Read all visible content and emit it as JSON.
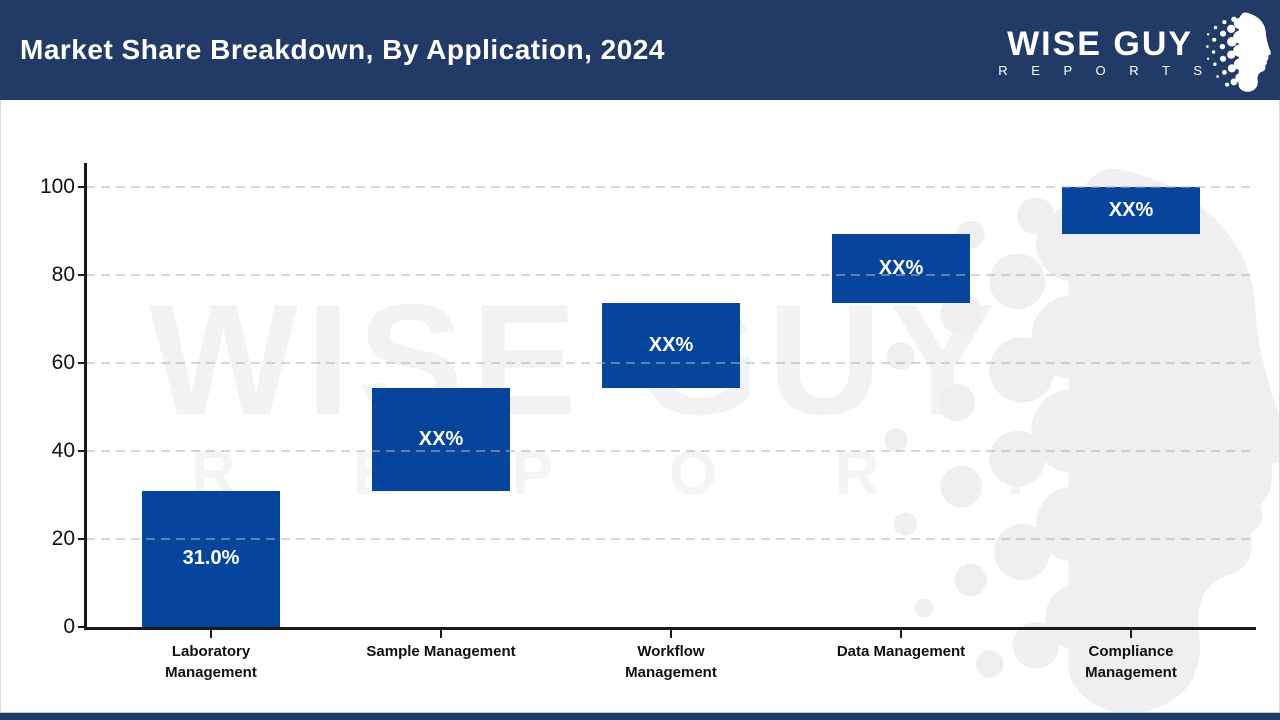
{
  "header": {
    "title": "Market Share Breakdown, By Application, 2024",
    "brand_line1": "WISE GUY",
    "brand_line2": "R E P O R T S"
  },
  "watermark": {
    "line1": "WISE GUY",
    "line2": "R E P O R T S",
    "head_icon": "dotted-head-profile"
  },
  "colors": {
    "header_navy": "#223A66",
    "bar_blue": "#07459C",
    "watermark_gray": "#f2f2f4",
    "grid_gray": "#dadade",
    "axis_black": "#1a1a1a"
  },
  "chart_data": {
    "type": "bar",
    "subtype": "waterfall-stacked-breakdown",
    "title": "Market Share Breakdown, By Application, 2024",
    "xlabel": "",
    "ylabel": "",
    "ylim": [
      0,
      105
    ],
    "yticks": [
      0,
      20,
      40,
      60,
      80,
      100
    ],
    "grid": "horizontal dashed, drawn over bars",
    "legend": "none",
    "bar_color": "#07459C",
    "categories": [
      "Laboratory Management",
      "Sample Management",
      "Workflow Management",
      "Data Management",
      "Compliance Management"
    ],
    "category_label_lines": [
      [
        "Laboratory",
        "Management"
      ],
      [
        "Sample Management"
      ],
      [
        "Workflow",
        "Management"
      ],
      [
        "Data Management"
      ],
      [
        "Compliance",
        "Management"
      ]
    ],
    "segments": [
      {
        "category": "Laboratory Management",
        "start": 0.0,
        "end": 31.0,
        "value": 31.0,
        "label": "31.0%"
      },
      {
        "category": "Sample Management",
        "start": 31.0,
        "end": 54.4,
        "value": 23.4,
        "label": "XX%"
      },
      {
        "category": "Workflow Management",
        "start": 54.4,
        "end": 73.6,
        "value": 19.2,
        "label": "XX%"
      },
      {
        "category": "Data Management",
        "start": 73.6,
        "end": 89.3,
        "value": 15.7,
        "label": "XX%"
      },
      {
        "category": "Compliance Management",
        "start": 89.3,
        "end": 100.0,
        "value": 10.7,
        "label": "XX%"
      }
    ]
  }
}
